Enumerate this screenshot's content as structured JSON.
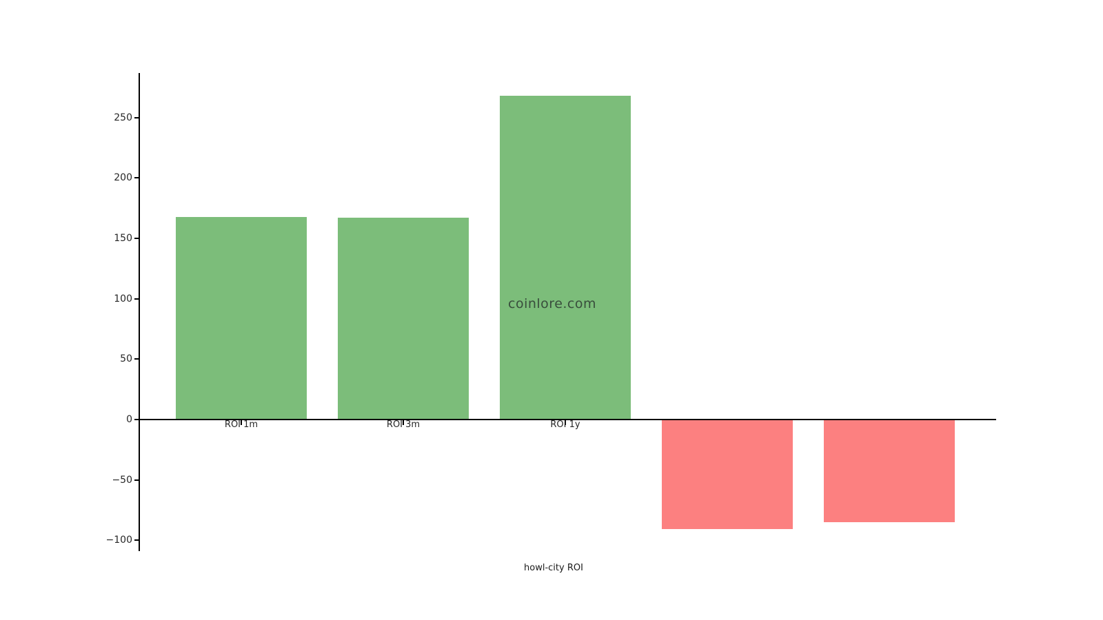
{
  "chart_data": {
    "type": "bar",
    "title": "howl-city ROI",
    "watermark": "coinlore.com",
    "categories": [
      "ROI 1m",
      "ROI 3m",
      "ROI 1y",
      "",
      ""
    ],
    "values": [
      168,
      167,
      268,
      -91,
      -85
    ],
    "series": [
      {
        "name": "howl-city ROI",
        "values": [
          168,
          167,
          268,
          -91,
          -85
        ]
      }
    ],
    "bar_colors": [
      "#7cbd7a",
      "#7cbd7a",
      "#7cbd7a",
      "#fc8080",
      "#fc8080"
    ],
    "positive_color": "#7cbd7a",
    "negative_color": "#fc8080",
    "xlabel": "howl-city ROI",
    "ylabel": "",
    "yticks": [
      -100,
      -50,
      0,
      50,
      100,
      150,
      200,
      250
    ],
    "ylim": [
      -109,
      287
    ],
    "grid": false,
    "legend_position": "none",
    "axis_color": "#000000",
    "tick_label_color": "#262626",
    "background_color": "#ffffff",
    "note": ""
  }
}
